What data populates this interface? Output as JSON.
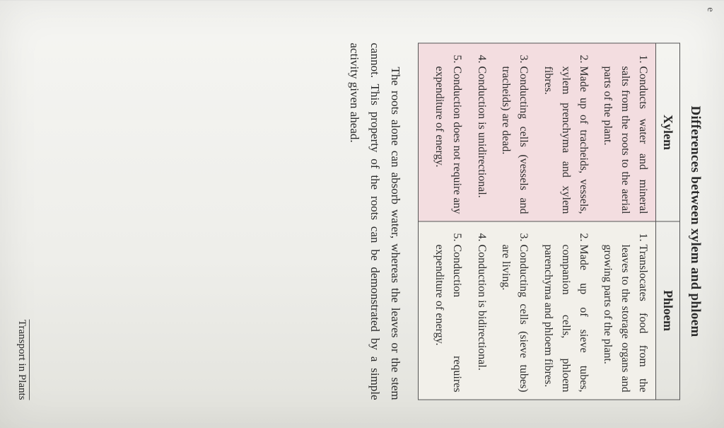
{
  "title": "Differences between xylem and phloem",
  "columns": {
    "left_header": "Xylem",
    "right_header": "Phloem"
  },
  "xylem": [
    "Conducts water and mineral salts from the roots to the aerial parts of the plant.",
    "Made up of tracheids, vessels, xylem prenchyma and xylem fibres.",
    "Conducting cells (vessels and tracheids) are dead.",
    "Conduction is unidirectional.",
    "Conduction does not require any expenditure of energy."
  ],
  "phloem": [
    "Translocates food from the leaves to the storage organs and growing parts of the plant.",
    "Made up of sieve tubes, companion cells, phloem parenchyma and phloem fibres.",
    "Conducting cells (sieve tubes) are living.",
    "Conduction is bidirectional.",
    "Conduction requires expenditure of energy."
  ],
  "paragraph": "The roots alone can absorb water, whereas the leaves or the stem cannot. This property of the roots can be demonstrated by a simple activity given ahead.",
  "footer": "Transport in Plants",
  "edge_mark": "e"
}
